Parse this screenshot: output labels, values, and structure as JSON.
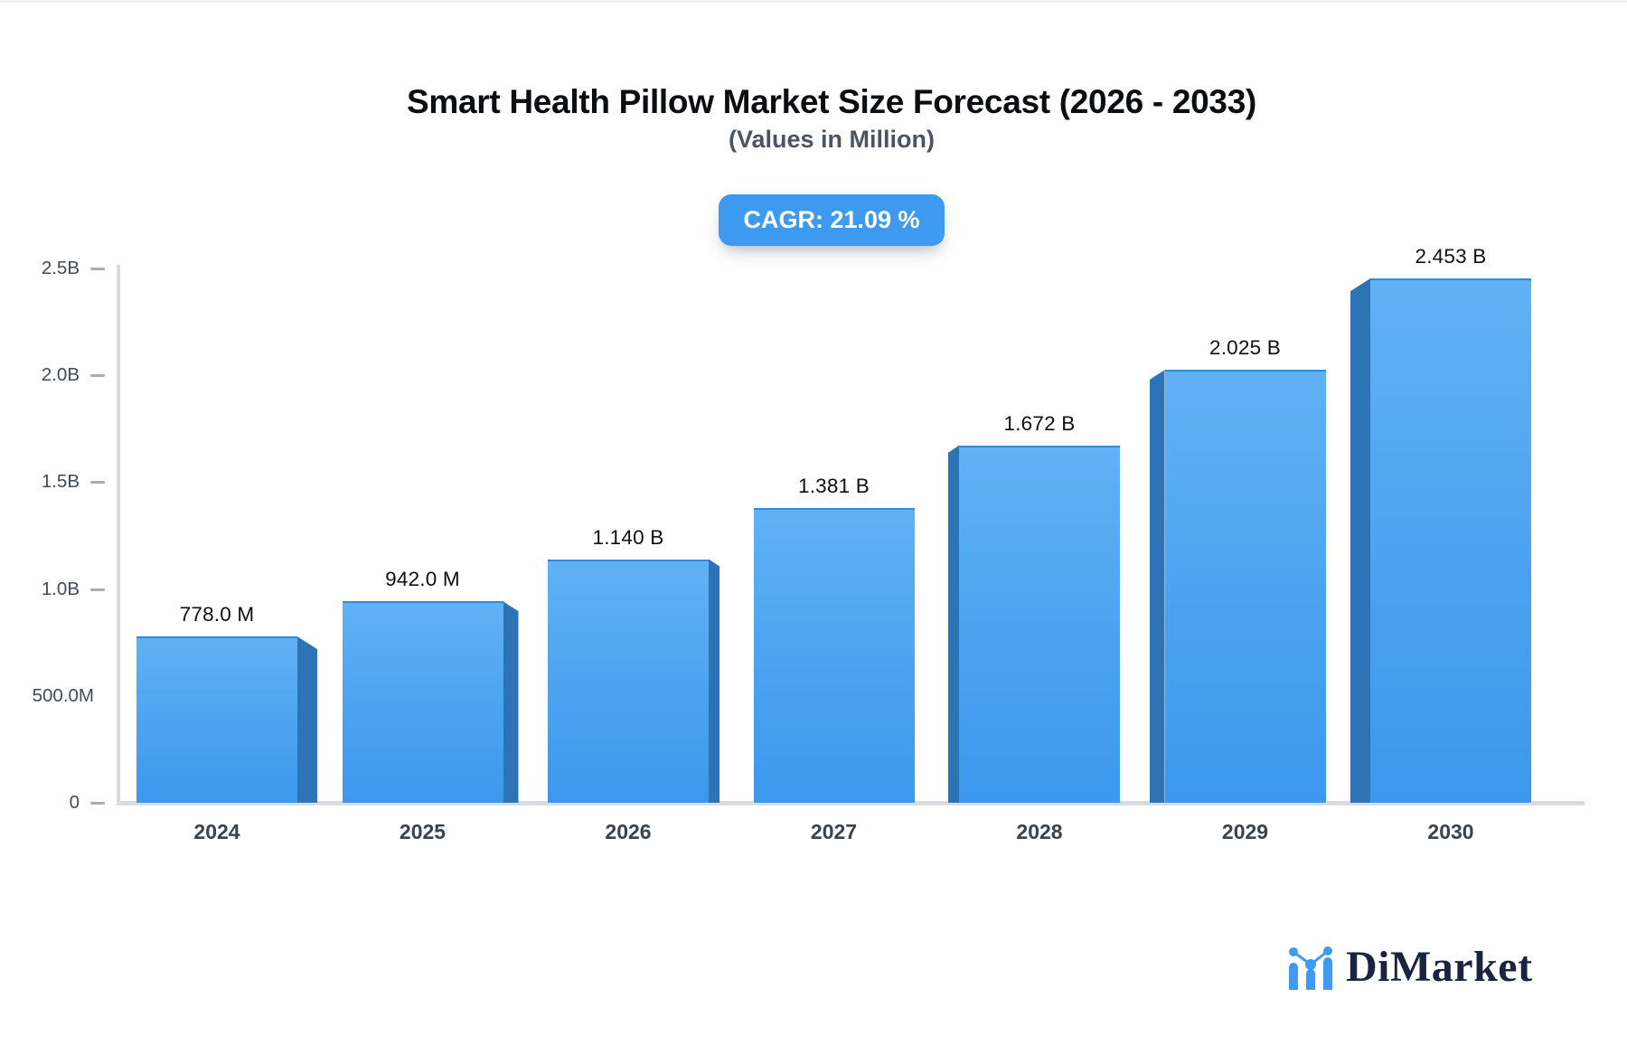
{
  "header": {
    "title": "Smart Health Pillow Market Size Forecast (2026 - 2033)",
    "subtitle": "(Values in Million)",
    "cagr_badge": "CAGR: 21.09 %"
  },
  "brand": {
    "name": "DiMarket"
  },
  "colors": {
    "accent_blue": "#3e9af0",
    "bar_face_top": "#61b1f4",
    "bar_face_mid": "#4ba3f0",
    "bar_face_bottom": "#3c98ee",
    "bar_side": "#2d74b6",
    "axis_line": "#d8dbdf",
    "tick": "#a6adb6",
    "brand_navy": "#1a2440",
    "logo_blue": "#3f9af3"
  },
  "chart_data": {
    "type": "bar",
    "title": "Smart Health Pillow Market Size Forecast (2026 - 2033)",
    "subtitle": "(Values in Million)",
    "value_unit": "Million",
    "cagr_percent": 21.09,
    "categories": [
      "2024",
      "2025",
      "2026",
      "2027",
      "2028",
      "2029",
      "2030"
    ],
    "values": [
      778,
      942,
      1140,
      1381,
      1672,
      2025,
      2453
    ],
    "bar_labels": [
      "778.0 M",
      "942.0 M",
      "1.140 B",
      "1.381 B",
      "1.672 B",
      "2.025 B",
      "2.453 B"
    ],
    "ylim": [
      0,
      2500
    ],
    "yticks": [
      {
        "label": "2.5B",
        "value": 2500,
        "tick": true
      },
      {
        "label": "2.0B",
        "value": 2000,
        "tick": true
      },
      {
        "label": "1.5B",
        "value": 1500,
        "tick": true
      },
      {
        "label": "1.0B",
        "value": 1000,
        "tick": true
      },
      {
        "label": "500.0M",
        "value": 500,
        "tick": false
      },
      {
        "label": "0",
        "value": 0,
        "tick": true
      }
    ],
    "grid": false,
    "legend": false
  }
}
